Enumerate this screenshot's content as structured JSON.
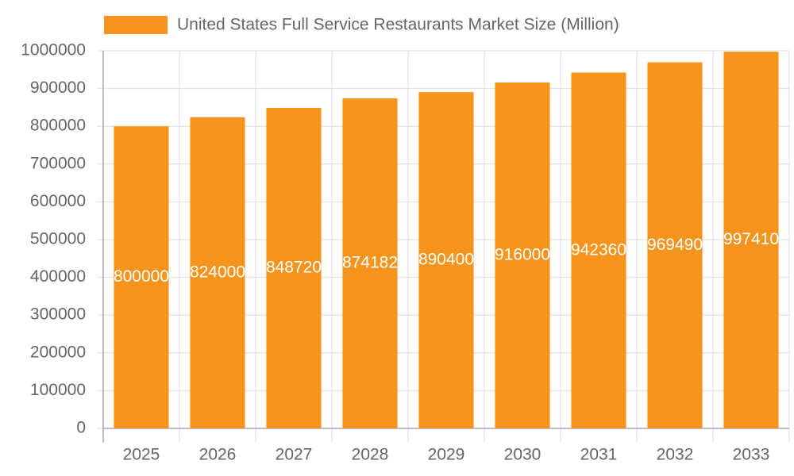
{
  "chart_data": {
    "type": "bar",
    "categories": [
      "2025",
      "2026",
      "2027",
      "2028",
      "2029",
      "2030",
      "2031",
      "2032",
      "2033"
    ],
    "series": [
      {
        "name": "United States Full Service Restaurants Market Size (Million)",
        "color": "#f7941d",
        "values": [
          800000,
          824000,
          848720,
          874182,
          890400,
          916000,
          942360,
          969490,
          997410
        ]
      }
    ],
    "ylim": [
      0,
      1000000
    ],
    "yticks": [
      0,
      100000,
      200000,
      300000,
      400000,
      500000,
      600000,
      700000,
      800000,
      900000,
      1000000
    ],
    "grid": true,
    "legend": "top",
    "data_labels": true
  }
}
